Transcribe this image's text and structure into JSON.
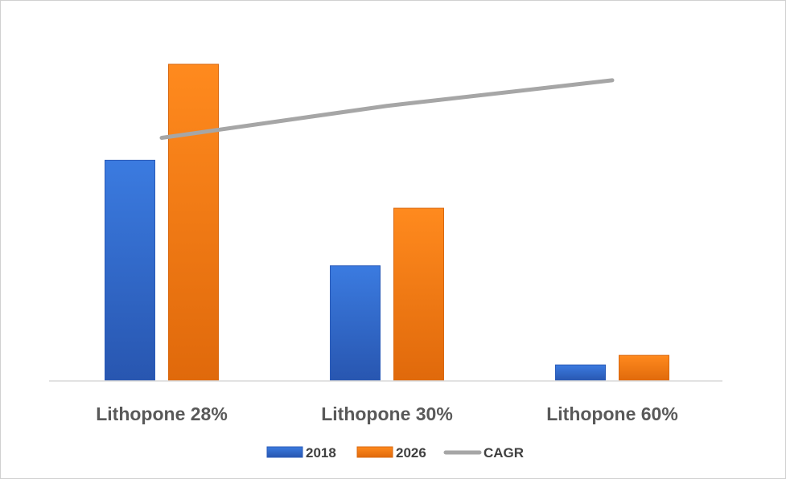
{
  "chart_data": {
    "type": "bar",
    "categories": [
      "Lithopone 28%",
      "Lithopone 30%",
      "Lithopone 60%"
    ],
    "series": [
      {
        "name": "2018",
        "type": "bar",
        "values": [
          69,
          36,
          5
        ],
        "color": "#2f67c9"
      },
      {
        "name": "2026",
        "type": "bar",
        "values": [
          99,
          54,
          8
        ],
        "color": "#f07a14"
      },
      {
        "name": "CAGR",
        "type": "line",
        "values": [
          76,
          86,
          94
        ],
        "color": "#a6a6a6"
      }
    ],
    "title": "",
    "xlabel": "",
    "ylabel": "",
    "ylim": [
      0,
      100
    ],
    "grid": false,
    "legend_position": "bottom"
  }
}
